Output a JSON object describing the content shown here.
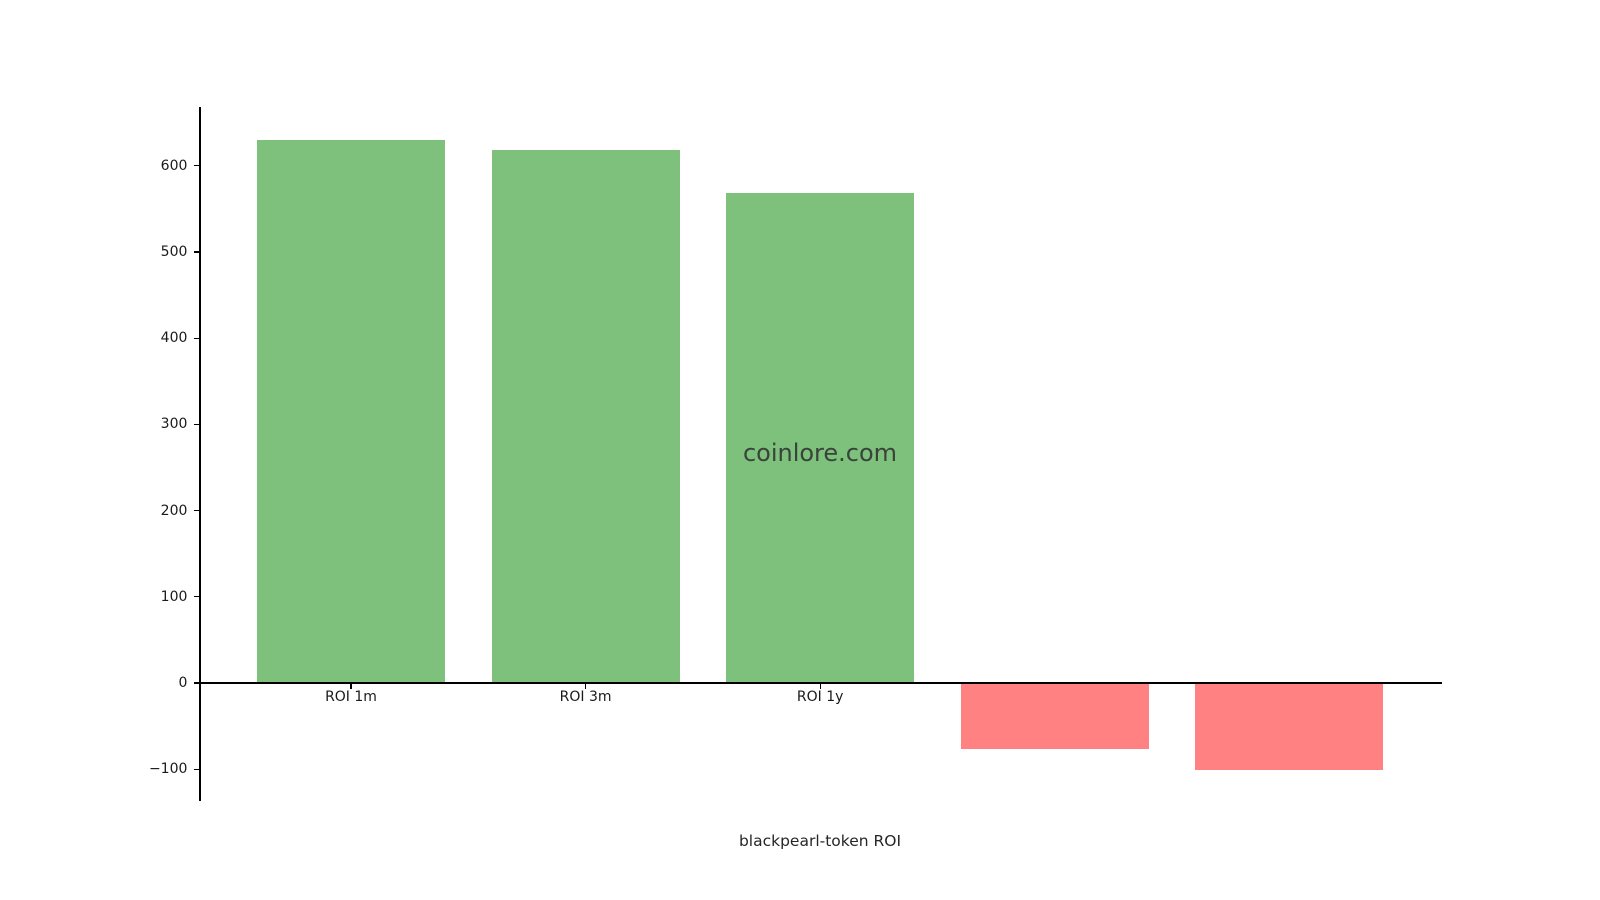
{
  "figure": {
    "background": "#ffffff"
  },
  "chart_data": {
    "type": "bar",
    "title": "blackpearl-token ROI",
    "watermark": "coinlore.com",
    "categories": [
      "ROI 1m",
      "ROI 3m",
      "ROI 1y",
      "",
      ""
    ],
    "values": [
      630,
      618,
      568,
      -75,
      -100
    ],
    "bar_colors": [
      "#7dc17d",
      "#7dc17d",
      "#7dc17d",
      "#ff8181",
      "#ff8181"
    ],
    "positive_color": "#7dc17d",
    "negative_color": "#ff8181",
    "axis_color": "#000000",
    "tick_label_color": "#1a1a1a",
    "yticks": {
      "values": [
        600,
        500,
        400,
        300,
        200,
        100,
        0,
        -100
      ],
      "labels": [
        "600",
        "500",
        "400",
        "300",
        "200",
        "100",
        "0",
        "−100"
      ]
    },
    "ylim": [
      -137,
      669
    ],
    "xlabel": "",
    "ylabel": "",
    "grid": false,
    "legend": false
  }
}
